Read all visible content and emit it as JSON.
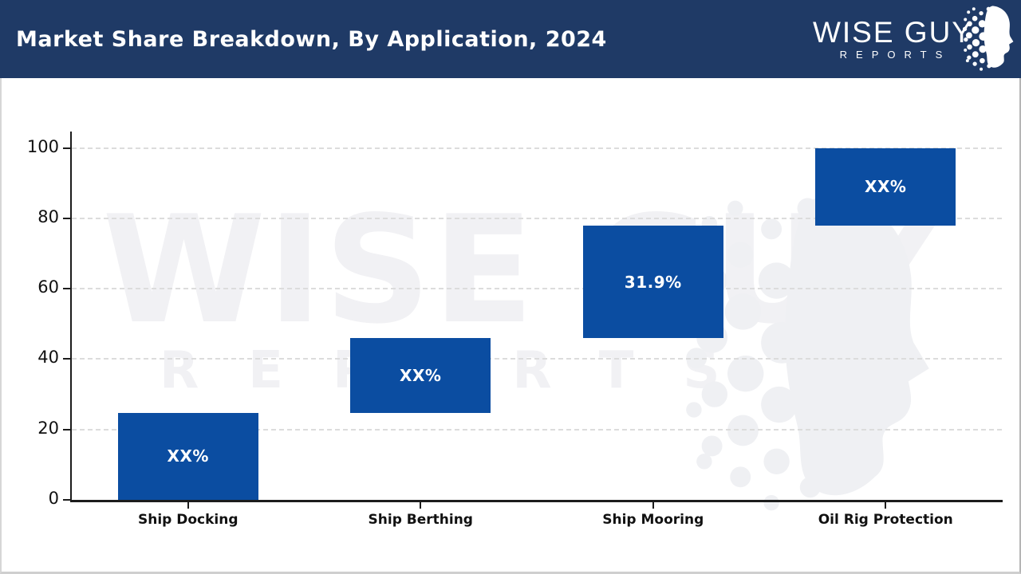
{
  "header": {
    "title": "Market Share Breakdown, By Application, 2024",
    "logo": {
      "name": "WISE GUY",
      "tagline": "REPORTS"
    }
  },
  "watermark": {
    "name": "WISE GUY",
    "tagline": "REPORTS"
  },
  "chart_data": {
    "type": "bar",
    "variant": "floating_segment_waterfall",
    "title": "Market Share Breakdown, By Application, 2024",
    "categories": [
      "Ship Docking",
      "Ship Berthing",
      "Ship Mooring",
      "Oil Rig Protection"
    ],
    "series": [
      {
        "name": "Market share (%)",
        "segments": [
          {
            "category": "Ship Docking",
            "start": 0,
            "end": 24.8,
            "label": "XX%"
          },
          {
            "category": "Ship Berthing",
            "start": 24.8,
            "end": 46.0,
            "label": "XX%"
          },
          {
            "category": "Ship Mooring",
            "start": 46.0,
            "end": 77.9,
            "label": "31.9%"
          },
          {
            "category": "Oil Rig Protection",
            "start": 77.9,
            "end": 100,
            "label": "XX%"
          }
        ]
      }
    ],
    "xlabel": "",
    "ylabel": "",
    "yticks": [
      0,
      20,
      40,
      60,
      80,
      100
    ],
    "ylim": [
      0,
      104.6
    ],
    "grid": "horizontal_dashed",
    "legend": "none",
    "colors": {
      "bar": "#0b4da1",
      "bar_label": "#ffffff",
      "axis": "#1c1c1c",
      "grid": "#dcdcdc",
      "tick_label": "#111111",
      "header_bg": "#1f3a66",
      "watermark": "#f1f1f4"
    }
  }
}
